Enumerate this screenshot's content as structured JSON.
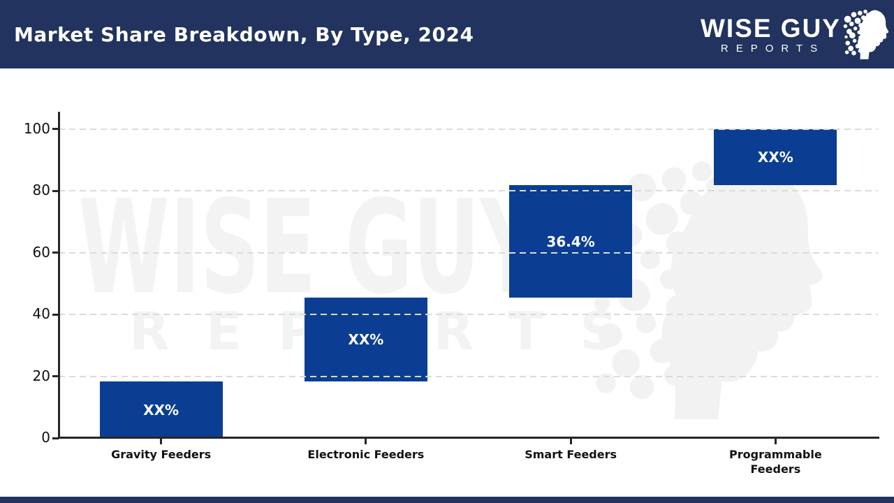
{
  "header": {
    "title": "Market Share Breakdown, By Type, 2024",
    "logo": {
      "line1": "WISE GUY",
      "line2": "REPORTS"
    }
  },
  "watermark": {
    "line1": "WISE GUY",
    "line2": "REPORTS"
  },
  "footer": {},
  "chart_data": {
    "type": "bar",
    "subtype": "waterfall-floating-bars",
    "title": "Market Share Breakdown, By Type, 2024",
    "categories": [
      "Gravity Feeders",
      "Electronic Feeders",
      "Smart Feeders",
      "Programmable Feeders"
    ],
    "series": [
      {
        "name": "Market share (%)",
        "segments": [
          {
            "category": "Gravity Feeders",
            "from": 0,
            "to": 18.3,
            "label": "XX%"
          },
          {
            "category": "Electronic Feeders",
            "from": 18.3,
            "to": 45.4,
            "label": "XX%"
          },
          {
            "category": "Smart Feeders",
            "from": 45.4,
            "to": 81.8,
            "label": "36.4%"
          },
          {
            "category": "Programmable Feeders",
            "from": 81.8,
            "to": 100,
            "label": "XX%"
          }
        ]
      }
    ],
    "xlabel": "",
    "ylabel": "",
    "ylim": [
      0,
      100
    ],
    "yticks": [
      0,
      20,
      40,
      60,
      80,
      100
    ],
    "grid": "horizontal-dashed",
    "legend": "none",
    "colors": {
      "bar": "#0b3e92",
      "bar_label_text": "#ffffff",
      "grid": "#dbdbdb",
      "axis": "#262626",
      "tick_text": "#111111",
      "header_bg": "#21335e",
      "footer_bg": "#21335e",
      "watermark": "#f3f3f3"
    }
  }
}
